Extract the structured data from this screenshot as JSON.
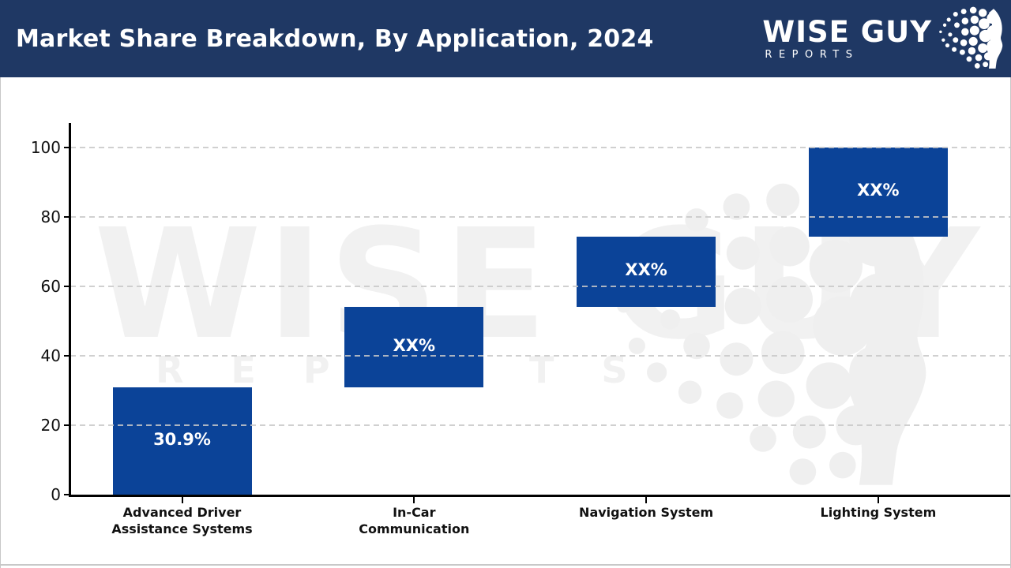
{
  "header": {
    "title": "Market Share Breakdown, By Application, 2024",
    "logo": {
      "name": "WISE GUY",
      "tagline": "REPORTS"
    }
  },
  "watermark": {
    "name": "WISE GUY",
    "tagline": "REPORTS"
  },
  "chart_data": {
    "type": "bar",
    "subtype": "waterfall",
    "title": "Market Share Breakdown, By Application, 2024",
    "categories": [
      "Advanced Driver Assistance Systems",
      "In-Car Communication",
      "Navigation System",
      "Lighting System"
    ],
    "segments": [
      {
        "category": "Advanced Driver Assistance Systems",
        "lines": [
          "Advanced Driver",
          "Assistance Systems"
        ],
        "start": 0,
        "end": 30.9,
        "label": "30.9%"
      },
      {
        "category": "In-Car Communication",
        "lines": [
          "In-Car",
          "Communication"
        ],
        "start": 30.9,
        "end": 54.1,
        "label": "XX%"
      },
      {
        "category": "Navigation System",
        "lines": [
          "Navigation System"
        ],
        "start": 54.1,
        "end": 74.3,
        "label": "XX%"
      },
      {
        "category": "Lighting System",
        "lines": [
          "Lighting System"
        ],
        "start": 74.3,
        "end": 100,
        "label": "XX%"
      }
    ],
    "xlabel": "",
    "ylabel": "",
    "ylim": [
      0,
      106
    ],
    "yticks": [
      0,
      20,
      40,
      60,
      80,
      100
    ],
    "grid": "horizontal-dashed",
    "legend": "none",
    "bar_color": "#0b4398",
    "bar_label_color": "#ffffff"
  },
  "colors": {
    "header_bg": "#1f3864",
    "bar": "#0b4398",
    "grid": "#d9d9d9",
    "axis": "#000000",
    "watermark": "#f0f0f0",
    "panel_border": "#c8c8c8"
  }
}
